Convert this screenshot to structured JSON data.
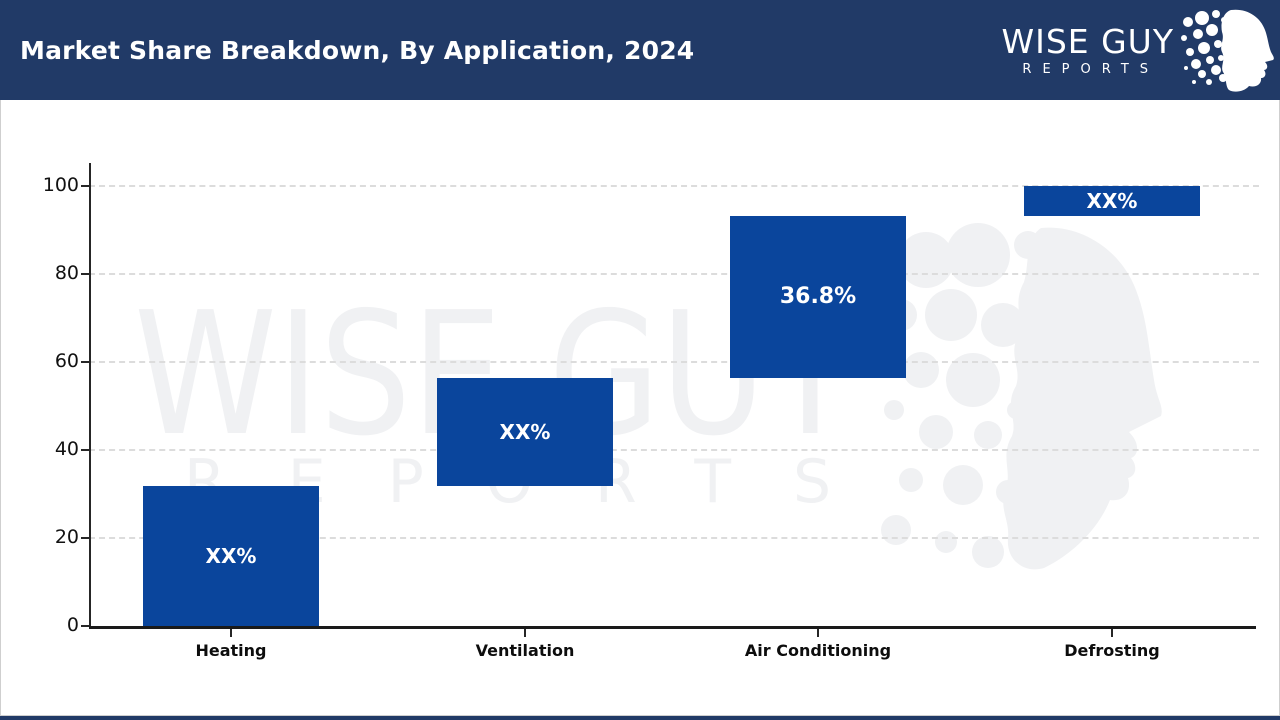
{
  "header": {
    "title": "Market Share Breakdown, By Application, 2024",
    "logo": {
      "line1": "WISE GUY",
      "line2": "REPORTS"
    }
  },
  "watermark": {
    "line1": "WISE GUY",
    "line2": "REPORTS"
  },
  "chart_data": {
    "type": "bar",
    "subtype": "waterfall",
    "title": "Market Share Breakdown, By Application, 2024",
    "categories": [
      "Heating",
      "Ventilation",
      "Air Conditioning",
      "Defrosting"
    ],
    "segments": [
      {
        "category": "Heating",
        "start": 0,
        "end": 31.8,
        "label": "XX%"
      },
      {
        "category": "Ventilation",
        "start": 31.8,
        "end": 56.4,
        "label": "XX%"
      },
      {
        "category": "Air Conditioning",
        "start": 56.4,
        "end": 93.2,
        "label": "36.8%"
      },
      {
        "category": "Defrosting",
        "start": 93.2,
        "end": 100,
        "label": "XX%"
      }
    ],
    "ylim": [
      0,
      100
    ],
    "yticks": [
      "0",
      "20",
      "40",
      "60",
      "80",
      "100"
    ],
    "xlabel": "",
    "ylabel": "",
    "grid": "horizontal-dashed",
    "legend": "none",
    "bar_color": "#0a459c",
    "bar_label_color": "#ffffff",
    "header_color": "#213a67"
  }
}
